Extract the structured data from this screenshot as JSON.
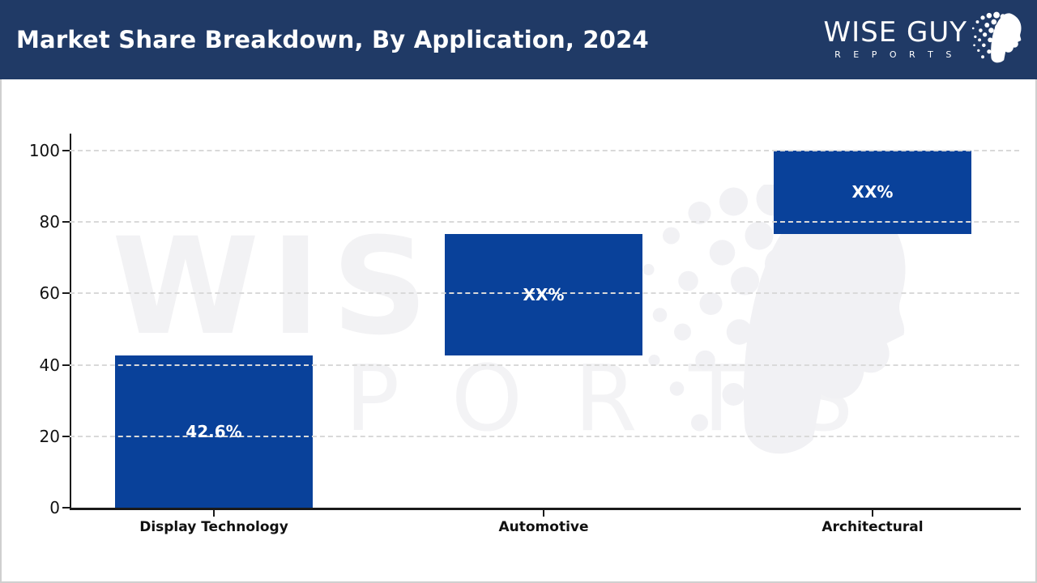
{
  "header": {
    "title": "Market Share Breakdown, By Application, 2024",
    "bg_color": "#203a66",
    "logo": {
      "wordmark": "WISE GUY",
      "subtext": "R E P O R T S",
      "face_icon": "dotted-head-profile"
    }
  },
  "watermark": {
    "wordmark": "WISE",
    "subtext": "R E P O R T S",
    "face_icon": "dotted-head-profile"
  },
  "chart_data": {
    "type": "bar",
    "variant": "waterfall",
    "title": "Market Share Breakdown, By Application, 2024",
    "categories": [
      "Display Technology",
      "Automotive",
      "Architectural"
    ],
    "segments": [
      {
        "category": "Display Technology",
        "start": 0,
        "end": 42.6,
        "label": "42.6%"
      },
      {
        "category": "Automotive",
        "start": 42.6,
        "end": 76.7,
        "label": "XX%"
      },
      {
        "category": "Architectural",
        "start": 76.7,
        "end": 100,
        "label": "XX%"
      }
    ],
    "xlabel": "",
    "ylabel": "",
    "ylim": [
      0,
      100
    ],
    "yticks": [
      0,
      20,
      40,
      60,
      80,
      100
    ],
    "grid": "dashed-horizontal-over-bars",
    "legend": "none",
    "bar_color": "#09419a",
    "bar_label_color": "#ffffff",
    "axis_color": "#1a1a1a",
    "gridline_color": "#d9d9d9",
    "tick_label_color": "#111111"
  }
}
